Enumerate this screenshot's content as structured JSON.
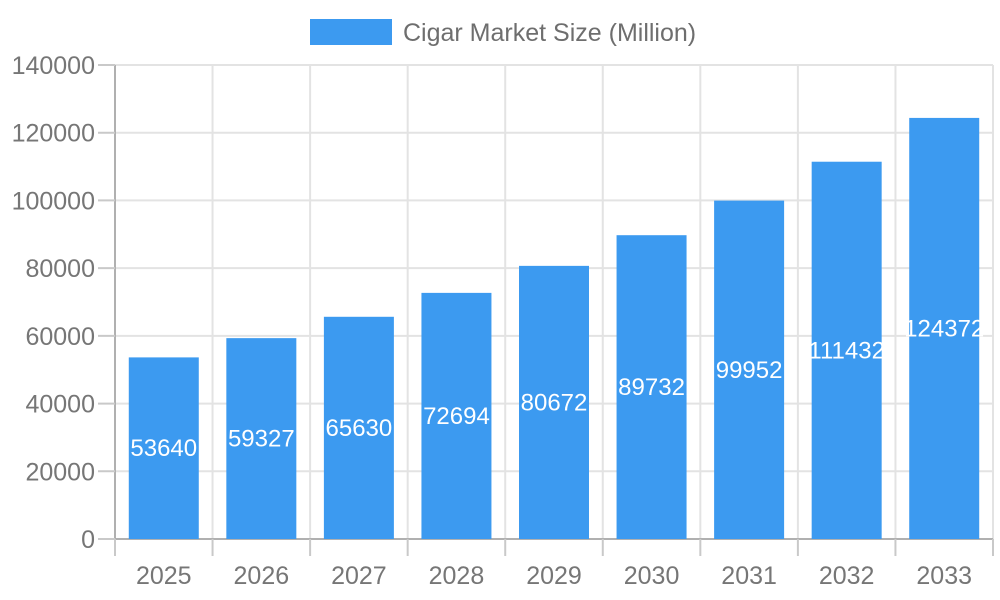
{
  "chart_data": {
    "type": "bar",
    "title": "Cigar Market Size (Million)",
    "legend": {
      "label": "Cigar Market Size (Million)",
      "position": "top"
    },
    "categories": [
      "2025",
      "2026",
      "2027",
      "2028",
      "2029",
      "2030",
      "2031",
      "2032",
      "2033"
    ],
    "values": [
      53640,
      59327,
      65630,
      72694,
      80672,
      89732,
      99952,
      111432,
      124372
    ],
    "bar_value_labels": [
      "53640",
      "59327",
      "65630",
      "72694",
      "80672",
      "89732",
      "99952",
      "111432",
      "124372"
    ],
    "xlabel": "",
    "ylabel": "",
    "ylim": [
      0,
      140000
    ],
    "ytick_step": 20000,
    "yticks": [
      "0",
      "20000",
      "40000",
      "60000",
      "80000",
      "100000",
      "120000",
      "140000"
    ],
    "grid": true,
    "colors": {
      "bar": "#3C9AF0",
      "axis_text": "#767676",
      "legend_text": "#6E6E6E",
      "bar_label_text": "#FFFFFF",
      "gridline": "#E3E3E3",
      "axis_line": "#B0B0B0",
      "tick": "#C9C9C9",
      "background": "#FFFFFF"
    }
  }
}
